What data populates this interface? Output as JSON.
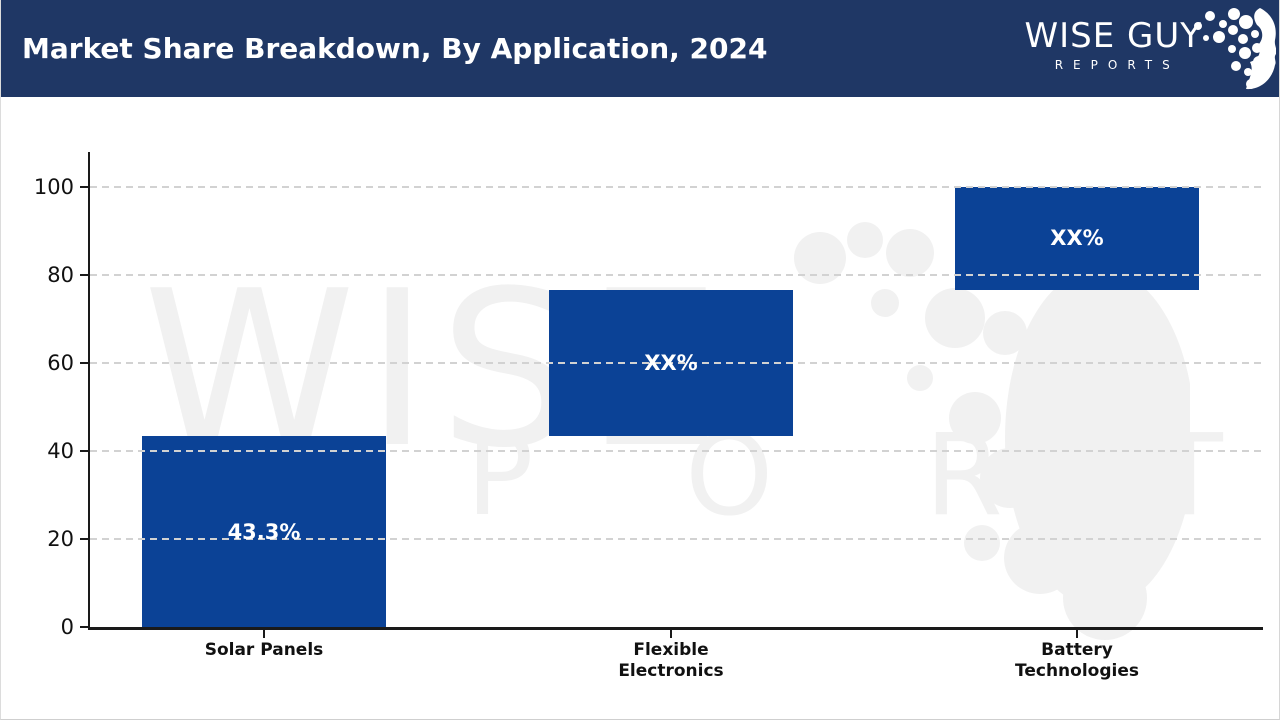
{
  "header": {
    "title": "Market Share Breakdown, By Application, 2024",
    "logo": {
      "line1": "WISE GUY",
      "line2": "REPORTS"
    }
  },
  "watermark": {
    "word1": "WISE",
    "word2": "P O R T S"
  },
  "chart_data": {
    "type": "bar",
    "subtype": "stacked-segment waterfall (each bar floats where the previous ends)",
    "title": "Market Share Breakdown, By Application, 2024",
    "categories": [
      {
        "lines": [
          "Solar Panels",
          ""
        ]
      },
      {
        "lines": [
          "Flexible",
          "Electronics"
        ]
      },
      {
        "lines": [
          "Battery",
          "Technologies"
        ]
      }
    ],
    "bars": [
      {
        "category": "Solar Panels",
        "value_label": "43.3%",
        "start": 0,
        "end": 43.3,
        "segment_size": 43.3
      },
      {
        "category": "Flexible Electronics",
        "value_label": "XX%",
        "start": 43.3,
        "end": 76.6,
        "segment_size": 33.3
      },
      {
        "category": "Battery Technologies",
        "value_label": "XX%",
        "start": 76.6,
        "end": 100,
        "segment_size": 23.4
      }
    ],
    "ylim": [
      0,
      100
    ],
    "yticks": [
      "0",
      "20",
      "40",
      "60",
      "80",
      "100"
    ],
    "xlabel": "",
    "ylabel": "",
    "legend": "none",
    "grid": "dashed horizontal gridlines drawn over bars",
    "colors": {
      "bar": "#0b4296",
      "header_bg": "#1f3765",
      "grid": "#d2d2d2",
      "axis": "#1a1a1a",
      "value_label_text": "#ffffff"
    }
  }
}
